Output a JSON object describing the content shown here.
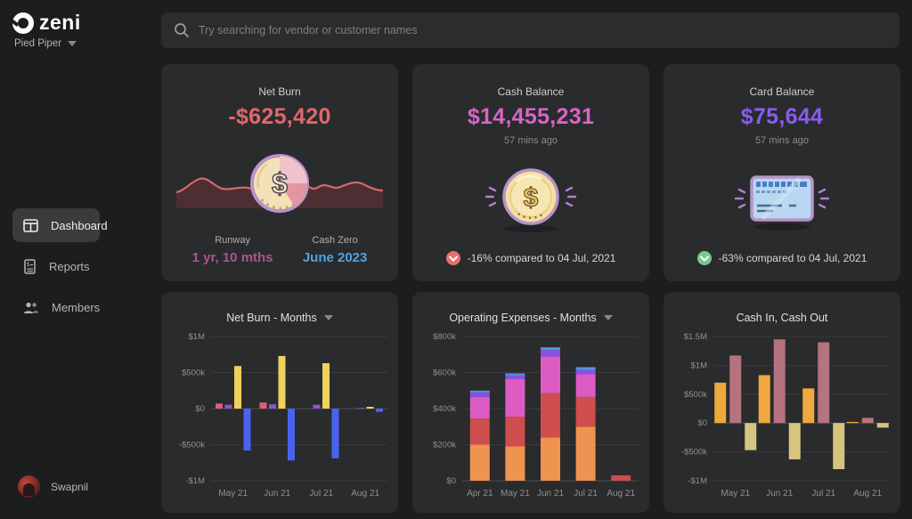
{
  "brand": {
    "name": "zeni",
    "company": "Pied Piper"
  },
  "search": {
    "placeholder": "Try searching for vendor or customer names"
  },
  "sidebar": {
    "items": [
      {
        "label": "Dashboard",
        "icon": "dashboard-icon",
        "active": true
      },
      {
        "label": "Reports",
        "icon": "reports-icon",
        "active": false
      },
      {
        "label": "Members",
        "icon": "members-icon",
        "active": false
      }
    ],
    "user": {
      "name": "Swapnil"
    }
  },
  "icons": {
    "logo": "zeni-ring-logo",
    "search": "magnifier",
    "company_caret": "chevron-down",
    "chart_caret": "chevron-down",
    "negative_badge": "red-circle-chevron-down",
    "positive_badge": "green-circle-chevron-down"
  },
  "cards": {
    "net_burn": {
      "title": "Net Burn",
      "value": "-$625,420",
      "value_color": "#e0676e",
      "runway_label": "Runway",
      "runway_value": "1 yr, 10 mths",
      "runway_color": "#ab5590",
      "cash_zero_label": "Cash Zero",
      "cash_zero_value": "June 2023",
      "cash_zero_color": "#4fa3e3"
    },
    "cash_balance": {
      "title": "Cash Balance",
      "value": "$14,455,231",
      "value_color": "#d964c9",
      "updated": "57 mins ago",
      "comparison": "-16% compared to 04 Jul, 2021",
      "badge_color": "#e57070"
    },
    "card_balance": {
      "title": "Card Balance",
      "value": "$75,644",
      "value_color": "#8a5cf0",
      "updated": "57 mins ago",
      "comparison": "-63% compared to 04 Jul, 2021",
      "badge_color": "#77c98b"
    }
  },
  "chart_data": [
    {
      "id": "net-burn-months",
      "type": "bar",
      "mode": "grouped",
      "title": "Net Burn - Months",
      "has_dropdown": true,
      "grid": true,
      "categories": [
        "May 21",
        "Jun 21",
        "Jul 21",
        "Aug 21"
      ],
      "series": [
        {
          "name": "pink",
          "color": "#d85f78",
          "values": [
            70000,
            85000,
            0,
            0
          ]
        },
        {
          "name": "purple",
          "color": "#8e54cc",
          "values": [
            55000,
            60000,
            55000,
            10000
          ]
        },
        {
          "name": "yellow",
          "color": "#efd15e",
          "values": [
            590000,
            730000,
            630000,
            25000
          ]
        },
        {
          "name": "blue",
          "color": "#4a63ef",
          "values": [
            -580000,
            -720000,
            -690000,
            -45000
          ]
        }
      ],
      "ylim": [
        -1000000,
        1000000
      ],
      "yticks": [
        {
          "v": 1000000,
          "label": "$1M"
        },
        {
          "v": 500000,
          "label": "$500k"
        },
        {
          "v": 0,
          "label": "$0"
        },
        {
          "v": -500000,
          "label": "-$500k"
        },
        {
          "v": -1000000,
          "label": "-$1M"
        }
      ]
    },
    {
      "id": "operating-expenses-months",
      "type": "bar",
      "mode": "stacked",
      "title": "Operating Expenses - Months",
      "has_dropdown": true,
      "grid": true,
      "categories": [
        "Apr 21",
        "May 21",
        "Jun 21",
        "Jul 21",
        "Aug 21"
      ],
      "series": [
        {
          "name": "orange",
          "color": "#ef9350",
          "values": [
            200000,
            190000,
            240000,
            300000,
            0
          ]
        },
        {
          "name": "crimson",
          "color": "#cf4d4d",
          "values": [
            145000,
            165000,
            245000,
            165000,
            30000
          ]
        },
        {
          "name": "magenta",
          "color": "#dd5cc4",
          "values": [
            120000,
            210000,
            205000,
            125000,
            0
          ]
        },
        {
          "name": "purple",
          "color": "#8950e8",
          "values": [
            25000,
            20000,
            35000,
            25000,
            0
          ]
        },
        {
          "name": "teal-cap",
          "color": "#4e9ad0",
          "values": [
            10000,
            10000,
            15000,
            15000,
            0
          ]
        }
      ],
      "ylim": [
        0,
        800000
      ],
      "yticks": [
        {
          "v": 800000,
          "label": "$800k"
        },
        {
          "v": 600000,
          "label": "$600k"
        },
        {
          "v": 400000,
          "label": "$400k"
        },
        {
          "v": 200000,
          "label": "$200k"
        },
        {
          "v": 0,
          "label": "$0"
        }
      ]
    },
    {
      "id": "cash-in-cash-out",
      "type": "bar",
      "mode": "grouped",
      "title": "Cash In, Cash Out",
      "has_dropdown": false,
      "grid": true,
      "categories": [
        "May 21",
        "Jun 21",
        "Jul 21",
        "Aug 21"
      ],
      "series": [
        {
          "name": "cash-in-orange",
          "color": "#efa93e",
          "values": [
            700000,
            830000,
            600000,
            20000
          ]
        },
        {
          "name": "rose",
          "color": "#b5737f",
          "values": [
            1170000,
            1450000,
            1400000,
            90000
          ]
        },
        {
          "name": "cash-out-khaki",
          "color": "#d6c57e",
          "values": [
            -470000,
            -630000,
            -800000,
            -80000
          ]
        }
      ],
      "ylim": [
        -1000000,
        1500000
      ],
      "yticks": [
        {
          "v": 1500000,
          "label": "$1.5M"
        },
        {
          "v": 1000000,
          "label": "$1M"
        },
        {
          "v": 500000,
          "label": "$500k"
        },
        {
          "v": 0,
          "label": "$0"
        },
        {
          "v": -500000,
          "label": "-$500k"
        },
        {
          "v": -1000000,
          "label": "-$1M"
        }
      ]
    }
  ]
}
